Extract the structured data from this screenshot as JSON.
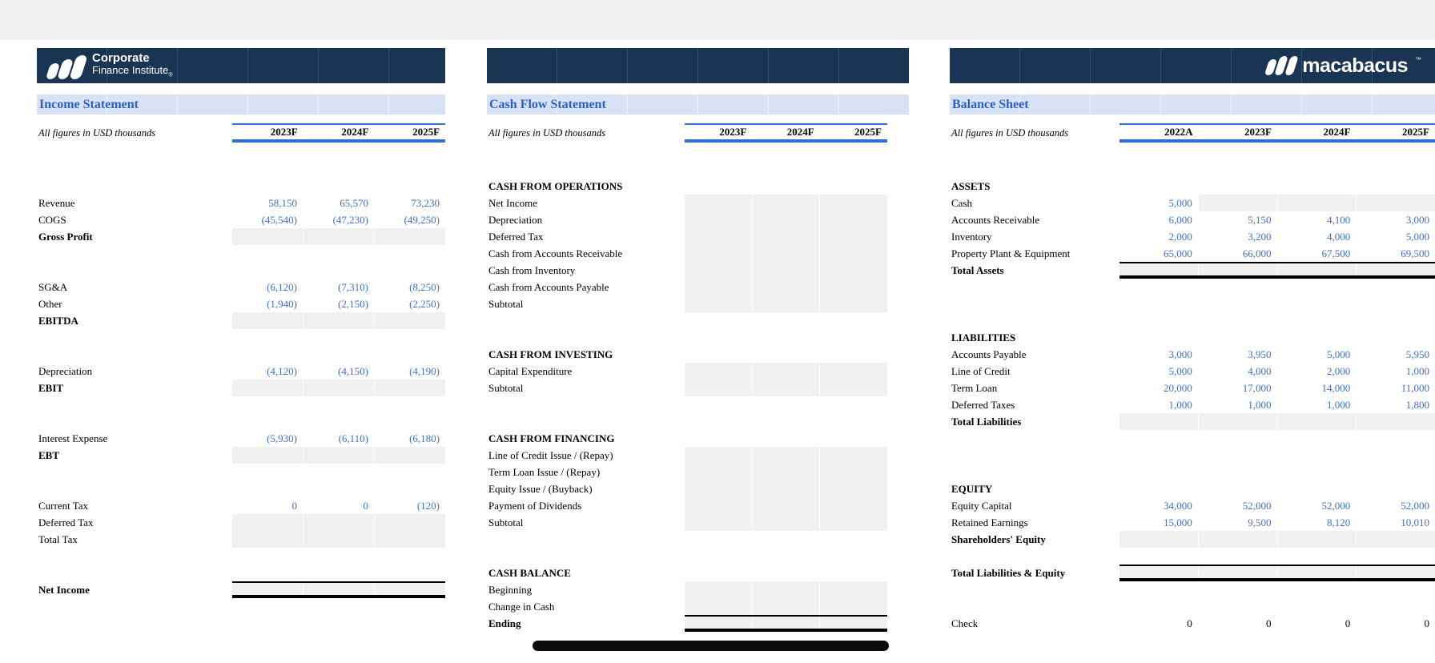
{
  "page": {
    "colors": {
      "navy_bar": "#1a3453",
      "banner": "#d9e2f4",
      "title_blue": "#2b5fc8",
      "header_line_blue": "#2e6fd6",
      "number_blue": "#4170c8",
      "shaded_cell": "#f0f0f0",
      "top_strip": "#eef0f2"
    }
  },
  "logos": {
    "cfi": {
      "line1": "Corporate",
      "line2": "Finance Institute",
      "reg": "®"
    },
    "macabacus": {
      "text": "macabacus",
      "tm": "™"
    }
  },
  "panels": [
    {
      "id": "is",
      "title": "Income Statement",
      "note": "All figures in USD thousands",
      "columns": [
        "2023F",
        "2024F",
        "2025F"
      ],
      "rows": [
        {
          "t": "blank"
        },
        {
          "t": "blank"
        },
        {
          "t": "blank"
        },
        {
          "t": "r",
          "label": "Revenue",
          "vals": [
            "58,150",
            "65,570",
            "73,230"
          ]
        },
        {
          "t": "r",
          "label": "COGS",
          "vals": [
            "(45,540)",
            "(47,230)",
            "(49,250)"
          ]
        },
        {
          "t": "r",
          "label": "Gross Profit",
          "bold": true,
          "gray": true
        },
        {
          "t": "blank"
        },
        {
          "t": "blank"
        },
        {
          "t": "r",
          "label": "SG&A",
          "vals": [
            "(6,120)",
            "(7,310)",
            "(8,250)"
          ]
        },
        {
          "t": "r",
          "label": "Other",
          "vals": [
            "(1,940)",
            "(2,150)",
            "(2,250)"
          ]
        },
        {
          "t": "r",
          "label": "EBITDA",
          "bold": true,
          "gray": true
        },
        {
          "t": "blank"
        },
        {
          "t": "blank"
        },
        {
          "t": "r",
          "label": "Depreciation",
          "vals": [
            "(4,120)",
            "(4,150)",
            "(4,190)"
          ]
        },
        {
          "t": "r",
          "label": "EBIT",
          "bold": true,
          "gray": true
        },
        {
          "t": "blank"
        },
        {
          "t": "blank"
        },
        {
          "t": "r",
          "label": "Interest Expense",
          "vals": [
            "(5,930)",
            "(6,110)",
            "(6,180)"
          ]
        },
        {
          "t": "r",
          "label": "EBT",
          "bold": true,
          "gray": true
        },
        {
          "t": "blank"
        },
        {
          "t": "blank"
        },
        {
          "t": "r",
          "label": "Current Tax",
          "vals": [
            "0",
            "0",
            "(120)"
          ]
        },
        {
          "t": "r",
          "label": "Deferred Tax",
          "gray": true
        },
        {
          "t": "r",
          "label": "Total Tax",
          "gray": true
        },
        {
          "t": "blank"
        },
        {
          "t": "blank"
        },
        {
          "t": "r",
          "label": "Net Income",
          "bold": true,
          "gray": true,
          "bt": true,
          "bb": true
        }
      ]
    },
    {
      "id": "cf",
      "title": "Cash Flow Statement",
      "note": "All figures in USD thousands",
      "columns": [
        "2023F",
        "2024F",
        "2025F"
      ],
      "rows": [
        {
          "t": "blank"
        },
        {
          "t": "blank"
        },
        {
          "t": "sec",
          "label": "CASH FROM OPERATIONS"
        },
        {
          "t": "r",
          "label": "Net Income",
          "gray": true
        },
        {
          "t": "r",
          "label": "Depreciation",
          "gray": true
        },
        {
          "t": "r",
          "label": "Deferred Tax",
          "gray": true
        },
        {
          "t": "r",
          "label": "Cash from Accounts Receivable",
          "gray": true
        },
        {
          "t": "r",
          "label": "Cash from Inventory",
          "gray": true
        },
        {
          "t": "r",
          "label": "Cash from Accounts Payable",
          "gray": true
        },
        {
          "t": "r",
          "label": "Subtotal",
          "gray": true
        },
        {
          "t": "blank"
        },
        {
          "t": "blank"
        },
        {
          "t": "sec",
          "label": "CASH FROM INVESTING"
        },
        {
          "t": "r",
          "label": "Capital Expenditure",
          "gray": true
        },
        {
          "t": "r",
          "label": "Subtotal",
          "gray": true
        },
        {
          "t": "blank"
        },
        {
          "t": "blank"
        },
        {
          "t": "sec",
          "label": "CASH FROM FINANCING"
        },
        {
          "t": "r",
          "label": "Line of Credit Issue / (Repay)",
          "gray": true
        },
        {
          "t": "r",
          "label": "Term Loan Issue / (Repay)",
          "gray": true
        },
        {
          "t": "r",
          "label": "Equity Issue / (Buyback)",
          "gray": true
        },
        {
          "t": "r",
          "label": "Payment of Dividends",
          "gray": true
        },
        {
          "t": "r",
          "label": "Subtotal",
          "gray": true
        },
        {
          "t": "blank"
        },
        {
          "t": "blank"
        },
        {
          "t": "sec",
          "label": "CASH BALANCE"
        },
        {
          "t": "r",
          "label": "Beginning",
          "gray": true
        },
        {
          "t": "r",
          "label": "Change in Cash",
          "gray": true
        },
        {
          "t": "r",
          "label": "Ending",
          "bold": true,
          "gray": true,
          "bt": true,
          "bb": true
        }
      ]
    },
    {
      "id": "bs",
      "title": "Balance Sheet",
      "note": "All figures in USD thousands",
      "columns": [
        "2022A",
        "2023F",
        "2024F",
        "2025F"
      ],
      "rows": [
        {
          "t": "blank"
        },
        {
          "t": "blank"
        },
        {
          "t": "sec",
          "label": "ASSETS"
        },
        {
          "t": "r",
          "label": "Cash",
          "vals": [
            "5,000",
            "",
            "",
            ""
          ],
          "gray": [
            false,
            true,
            true,
            true
          ]
        },
        {
          "t": "r",
          "label": "Accounts Receivable",
          "vals": [
            "6,000",
            "5,150",
            "4,100",
            "3,000"
          ]
        },
        {
          "t": "r",
          "label": "Inventory",
          "vals": [
            "2,000",
            "3,200",
            "4,000",
            "5,000"
          ]
        },
        {
          "t": "r",
          "label": "Property Plant & Equipment",
          "vals": [
            "65,000",
            "66,000",
            "67,500",
            "69,500"
          ]
        },
        {
          "t": "r",
          "label": "Total Assets",
          "bold": true,
          "gray": true,
          "bt": true,
          "bb": true
        },
        {
          "t": "blank"
        },
        {
          "t": "blank"
        },
        {
          "t": "blank"
        },
        {
          "t": "sec",
          "label": "LIABILITIES"
        },
        {
          "t": "r",
          "label": "Accounts Payable",
          "vals": [
            "3,000",
            "3,950",
            "5,000",
            "5,950"
          ]
        },
        {
          "t": "r",
          "label": "Line of Credit",
          "vals": [
            "5,000",
            "4,000",
            "2,000",
            "1,000"
          ]
        },
        {
          "t": "r",
          "label": "Term Loan",
          "vals": [
            "20,000",
            "17,000",
            "14,000",
            "11,000"
          ]
        },
        {
          "t": "r",
          "label": "Deferred Taxes",
          "vals": [
            "1,000",
            "1,000",
            "1,000",
            "1,800"
          ]
        },
        {
          "t": "r",
          "label": "Total Liabilities",
          "bold": true,
          "gray": true
        },
        {
          "t": "blank"
        },
        {
          "t": "blank"
        },
        {
          "t": "blank"
        },
        {
          "t": "sec",
          "label": "EQUITY"
        },
        {
          "t": "r",
          "label": "Equity Capital",
          "vals": [
            "34,000",
            "52,000",
            "52,000",
            "52,000"
          ]
        },
        {
          "t": "r",
          "label": "Retained Earnings",
          "vals": [
            "15,000",
            "9,500",
            "8,120",
            "10,010"
          ]
        },
        {
          "t": "r",
          "label": "Shareholders' Equity",
          "bold": true,
          "gray": true
        },
        {
          "t": "blank"
        },
        {
          "t": "r",
          "label": "Total Liabilities & Equity",
          "bold": true,
          "gray": true,
          "bt": true,
          "bb": true
        },
        {
          "t": "blank"
        },
        {
          "t": "blank"
        },
        {
          "t": "r",
          "label": "Check",
          "vals": [
            "0",
            "0",
            "0",
            "0"
          ],
          "dark": true
        }
      ]
    }
  ]
}
